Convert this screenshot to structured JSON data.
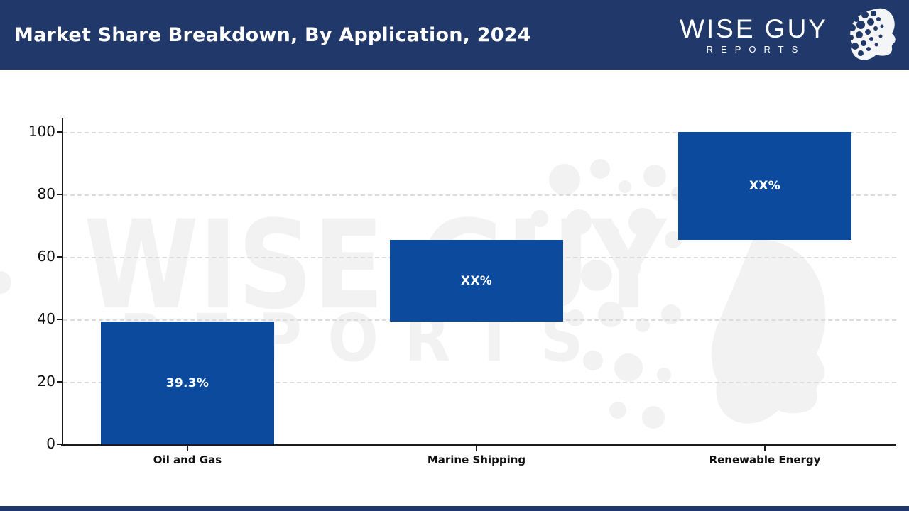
{
  "header": {
    "title": "Market Share Breakdown, By Application, 2024",
    "logo_line1": "WISE GUY",
    "logo_line2": "REPORTS"
  },
  "watermark": {
    "line1": "WISE GUY",
    "line2": "REPORTS"
  },
  "chart_data": {
    "type": "bar",
    "subtype": "waterfall",
    "title": "Market Share Breakdown, By Application, 2024",
    "categories": [
      "Oil and Gas",
      "Marine Shipping",
      "Renewable Energy"
    ],
    "series": [
      {
        "name": "Market Share (%)",
        "segments": [
          {
            "category": "Oil and Gas",
            "start": 0,
            "end": 39.3,
            "label": "39.3%"
          },
          {
            "category": "Marine Shipping",
            "start": 39.3,
            "end": 65.4,
            "label": "XX%"
          },
          {
            "category": "Renewable Energy",
            "start": 65.4,
            "end": 100,
            "label": "XX%"
          }
        ]
      }
    ],
    "xlabel": "",
    "ylabel": "",
    "ylim": [
      0,
      100
    ],
    "yticks": [
      0,
      20,
      40,
      60,
      80,
      100
    ],
    "grid": "horizontal-dashed",
    "legend": "none",
    "bar_color": "#0b4a9c",
    "value_label_color": "#ffffff",
    "axis_color": "#1a1a1a",
    "gridline_color": "#dcdcdc"
  },
  "colors": {
    "header_bg": "#21386a",
    "footer_bg": "#21386a",
    "title_text": "#ffffff",
    "watermark": "#f2f2f2"
  }
}
